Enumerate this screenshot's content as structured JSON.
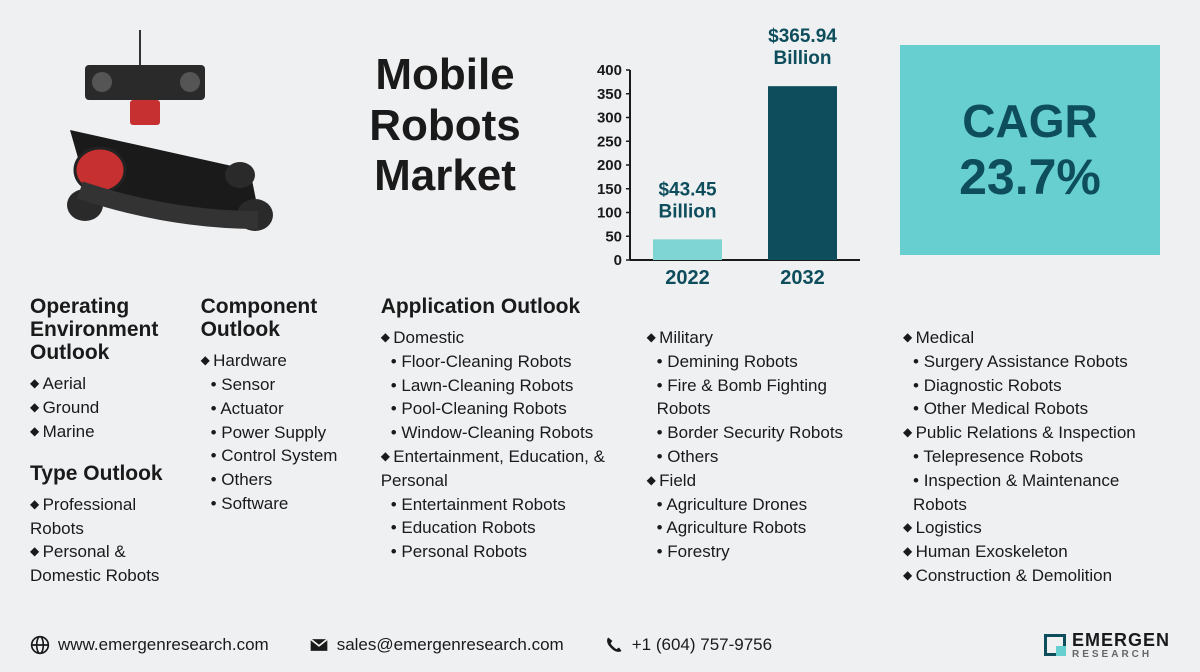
{
  "title": {
    "line1": "Mobile",
    "line2": "Robots",
    "line3": "Market"
  },
  "chart": {
    "type": "bar",
    "categories": [
      "2022",
      "2032"
    ],
    "values": [
      43.45,
      365.94
    ],
    "value_labels": [
      "$43.45\nBillion",
      "$365.94\nBillion"
    ],
    "bar_colors": [
      "#7fd4d4",
      "#0d4d5c"
    ],
    "ylim": [
      0,
      400
    ],
    "ytick_step": 50,
    "yticks": [
      0,
      50,
      100,
      150,
      200,
      250,
      300,
      350,
      400
    ],
    "axis_color": "#1a1a1a",
    "label_color": "#0d4d5c",
    "label_fontsize": 20,
    "label_fontweight": "900",
    "tick_fontsize": 15,
    "bar_width": 0.6,
    "background_color": "#eef0f2"
  },
  "cagr": {
    "label": "CAGR",
    "value": "23.7%",
    "bg_color": "#67cfcf",
    "text_color": "#0d4d5c"
  },
  "sections": {
    "operating_env": {
      "title": "Operating Environment Outlook",
      "items": [
        "Aerial",
        "Ground",
        "Marine"
      ]
    },
    "type": {
      "title": "Type Outlook",
      "items": [
        "Professional Robots",
        "Personal & Domestic Robots"
      ]
    },
    "component": {
      "title": "Component Outlook",
      "items": [
        {
          "t": "Hardware",
          "lvl": 0
        },
        {
          "t": "Sensor",
          "lvl": 1
        },
        {
          "t": "Actuator",
          "lvl": 1
        },
        {
          "t": "Power Supply",
          "lvl": 1
        },
        {
          "t": "Control System",
          "lvl": 1
        },
        {
          "t": "Others",
          "lvl": 1
        },
        {
          "t": "Software",
          "lvl": 1
        }
      ]
    },
    "application": {
      "title": "Application Outlook",
      "col1": [
        {
          "t": "Domestic",
          "lvl": 0
        },
        {
          "t": "Floor-Cleaning Robots",
          "lvl": 1
        },
        {
          "t": "Lawn-Cleaning Robots",
          "lvl": 1
        },
        {
          "t": "Pool-Cleaning Robots",
          "lvl": 1
        },
        {
          "t": "Window-Cleaning Robots",
          "lvl": 1
        },
        {
          "t": "Entertainment, Education, & Personal",
          "lvl": 0
        },
        {
          "t": "Entertainment Robots",
          "lvl": 1
        },
        {
          "t": "Education Robots",
          "lvl": 1
        },
        {
          "t": "Personal Robots",
          "lvl": 1
        }
      ],
      "col2": [
        {
          "t": "Military",
          "lvl": 0
        },
        {
          "t": "Demining Robots",
          "lvl": 1
        },
        {
          "t": "Fire & Bomb Fighting Robots",
          "lvl": 1
        },
        {
          "t": "Border Security Robots",
          "lvl": 1
        },
        {
          "t": "Others",
          "lvl": 1
        },
        {
          "t": "Field",
          "lvl": 0
        },
        {
          "t": "Agriculture Drones",
          "lvl": 1
        },
        {
          "t": "Agriculture Robots",
          "lvl": 1
        },
        {
          "t": "Forestry",
          "lvl": 1
        }
      ],
      "col3": [
        {
          "t": "Medical",
          "lvl": 0
        },
        {
          "t": "Surgery Assistance Robots",
          "lvl": 1
        },
        {
          "t": "Diagnostic Robots",
          "lvl": 1
        },
        {
          "t": "Other Medical Robots",
          "lvl": 1
        },
        {
          "t": "Public Relations & Inspection",
          "lvl": 0
        },
        {
          "t": "Telepresence Robots",
          "lvl": 1
        },
        {
          "t": "Inspection & Maintenance Robots",
          "lvl": 1
        },
        {
          "t": "Logistics",
          "lvl": 0
        },
        {
          "t": "Human Exoskeleton",
          "lvl": 0
        },
        {
          "t": "Construction & Demolition",
          "lvl": 0
        }
      ]
    }
  },
  "footer": {
    "website": "www.emergenresearch.com",
    "email": "sales@emergenresearch.com",
    "phone": "+1 (604) 757-9756",
    "logo_name": "EMERGEN",
    "logo_sub": "RESEARCH"
  }
}
